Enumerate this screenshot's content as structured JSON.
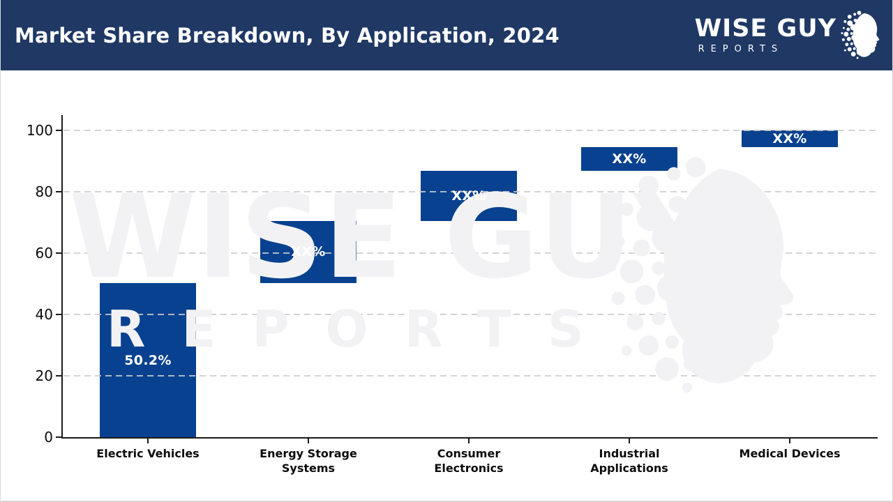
{
  "header": {
    "title": "Market Share Breakdown, By Application, 2024",
    "logo": {
      "primary": "WISE GUY",
      "secondary": "REPORTS"
    }
  },
  "watermark": {
    "primary": "WISE GUY",
    "secondary": "REPORTS"
  },
  "chart_data": {
    "type": "bar",
    "subtype": "floating-waterfall",
    "title": "Market Share Breakdown, By Application, 2024",
    "categories": [
      "Electric Vehicles",
      "Energy Storage\nSystems",
      "Consumer\nElectronics",
      "Industrial\nApplications",
      "Medical Devices"
    ],
    "segments": [
      {
        "category": "Electric Vehicles",
        "start": 0,
        "end": 50.2,
        "label": "50.2%"
      },
      {
        "category": "Energy Storage Systems",
        "start": 50.2,
        "end": 70.5,
        "label": "XX%"
      },
      {
        "category": "Consumer Electronics",
        "start": 70.5,
        "end": 86.8,
        "label": "XX%"
      },
      {
        "category": "Industrial Applications",
        "start": 86.8,
        "end": 94.6,
        "label": "XX%"
      },
      {
        "category": "Medical Devices",
        "start": 94.6,
        "end": 100,
        "label": "XX%"
      }
    ],
    "yticks": [
      0,
      20,
      40,
      60,
      80,
      100
    ],
    "ylim": [
      0,
      105
    ],
    "xlabel": "",
    "ylabel": "",
    "grid": "horizontal-dashed",
    "legend": "none",
    "bar_color": "#08418f"
  },
  "colors": {
    "header_bg": "#1f3864",
    "bar": "#08418f",
    "bar_label": "#ffffff",
    "axis": "#1a1a1a",
    "grid": "#d0d0d0",
    "watermark": "#f2f2f4"
  }
}
